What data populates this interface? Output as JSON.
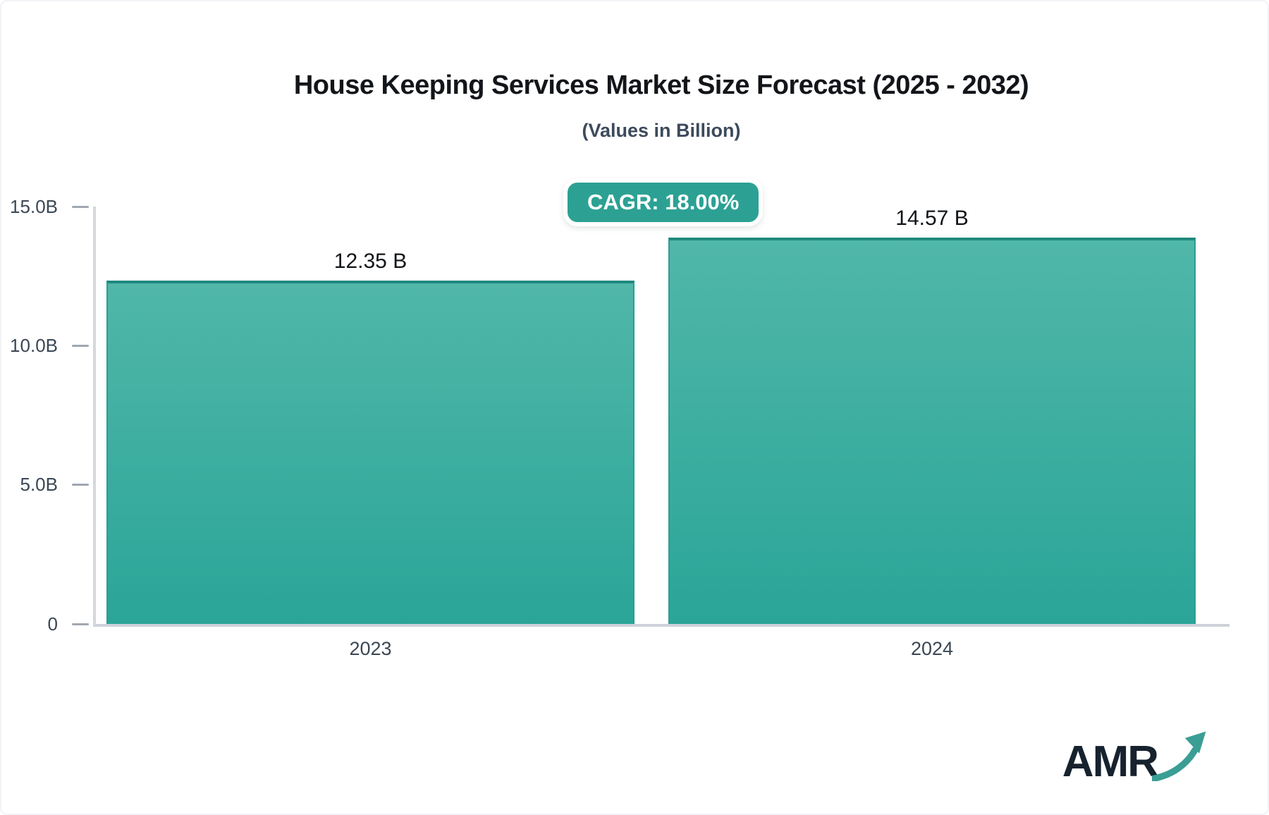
{
  "chart": {
    "title": "House Keeping Services Market Size Forecast (2025 - 2032)",
    "subtitle": "(Values in Billion)",
    "cagr_badge": "CAGR: 18.00%"
  },
  "chart_data": {
    "type": "bar",
    "title": "House Keeping Services Market Size Forecast (2025 - 2032)",
    "subtitle": "(Values in Billion)",
    "categories": [
      "2023",
      "2024"
    ],
    "values": [
      12.35,
      14.57
    ],
    "value_labels": [
      "12.35 B",
      "14.57 B"
    ],
    "xlabel": "",
    "ylabel": "",
    "ylim": [
      0,
      15
    ],
    "yticks": [
      {
        "value": 0,
        "label": "0"
      },
      {
        "value": 5,
        "label": "5.0B"
      },
      {
        "value": 10,
        "label": "10.0B"
      },
      {
        "value": 15,
        "label": "15.0B"
      }
    ],
    "grid": false,
    "legend": false,
    "annotations": [
      {
        "text": "CAGR: 18.00%",
        "position": "top-center"
      }
    ],
    "colors": {
      "bar_gradient_top": "#50b7a9",
      "bar_gradient_bottom": "#2aa598",
      "bar_top_border": "#1f897d",
      "badge_background": "#2ca193",
      "axis_line": "#d4d7dc",
      "tick_text": "#3b4754",
      "title_text": "#121519",
      "logo_text": "#16222e",
      "logo_arrow": "#3a9e95"
    }
  },
  "branding": {
    "logo_text": "AMR"
  }
}
